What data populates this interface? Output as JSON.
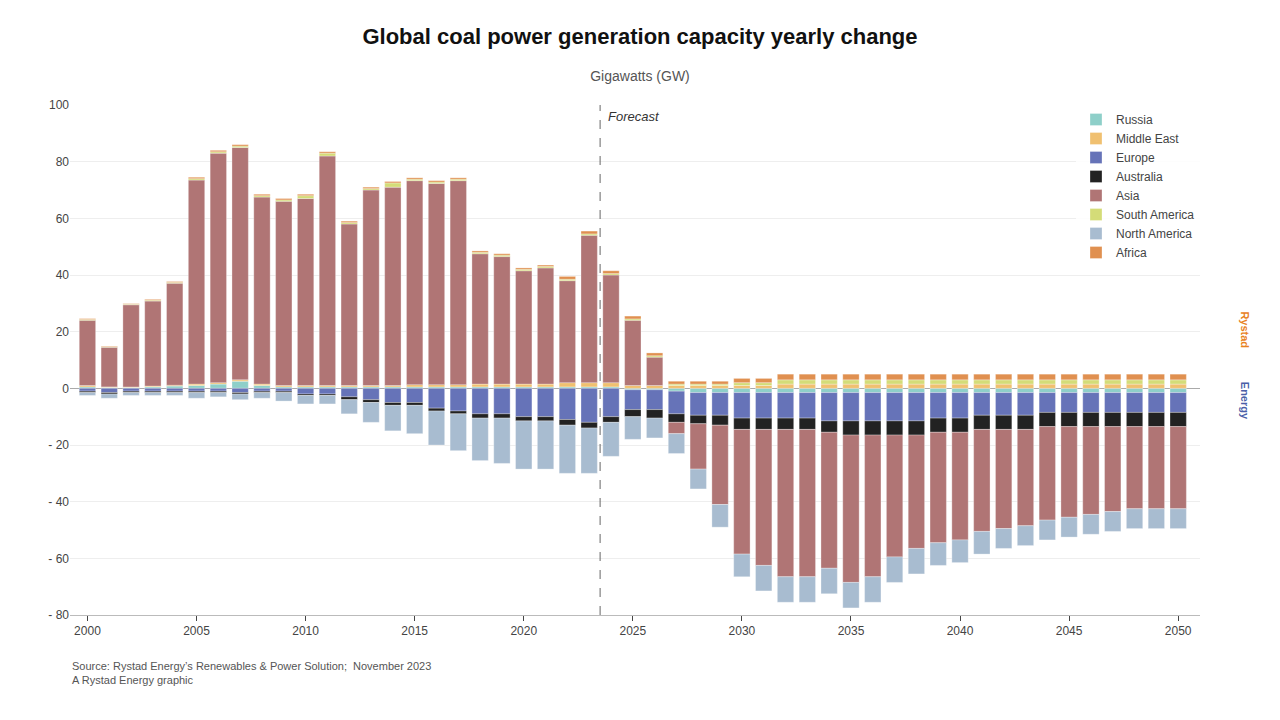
{
  "chart_data": {
    "type": "bar",
    "stacked": true,
    "title": "Global coal power generation capacity yearly change",
    "subtitle": "Gigawatts (GW)",
    "source": "Source: Rystad Energy’s Renewables & Power Solution;  November 2023\nA Rystad Energy graphic",
    "watermark": [
      {
        "text": "Rystad",
        "color": "#e8821e"
      },
      {
        "text": "Energy",
        "color": "#4a5fa8"
      }
    ],
    "annotations": [
      {
        "text": "Forecast",
        "x": 2023.5,
        "y": 96,
        "line_style": "dashed"
      }
    ],
    "x": [
      2000,
      2001,
      2002,
      2003,
      2004,
      2005,
      2006,
      2007,
      2008,
      2009,
      2010,
      2011,
      2012,
      2013,
      2014,
      2015,
      2016,
      2017,
      2018,
      2019,
      2020,
      2021,
      2022,
      2023,
      2024,
      2025,
      2026,
      2027,
      2028,
      2029,
      2030,
      2031,
      2032,
      2033,
      2034,
      2035,
      2036,
      2037,
      2038,
      2039,
      2040,
      2041,
      2042,
      2043,
      2044,
      2045,
      2046,
      2047,
      2048,
      2049,
      2050
    ],
    "xlim": [
      1999.2,
      2051.0
    ],
    "xticks": [
      2000,
      2005,
      2010,
      2015,
      2020,
      2025,
      2030,
      2035,
      2040,
      2045,
      2050
    ],
    "ylim": [
      -80,
      100
    ],
    "yticks": [
      {
        "value": -80,
        "label": "- 80"
      },
      {
        "value": -60,
        "label": "- 60"
      },
      {
        "value": -40,
        "label": "- 40"
      },
      {
        "value": -20,
        "label": "- 20"
      },
      0,
      20,
      40,
      60,
      80,
      100
    ],
    "grid": true,
    "legend": "upper right",
    "series": [
      {
        "name": "Russia",
        "color": "#8ecfc9",
        "values": [
          0.5,
          0.3,
          0.3,
          0.5,
          0.8,
          1.0,
          1.5,
          2.5,
          1.0,
          0.5,
          0.5,
          0.5,
          0.5,
          0.5,
          0.5,
          0.5,
          0.5,
          0.5,
          0.5,
          0.5,
          0.5,
          0.5,
          0.5,
          0.5,
          0.5,
          -0.5,
          -0.5,
          -1.0,
          -1.5,
          -1.5,
          -1.5,
          -1.5,
          -1.5,
          -1.5,
          -1.5,
          -1.5,
          -1.5,
          -1.5,
          -1.5,
          -1.5,
          -1.5,
          -1.5,
          -1.5,
          -1.5,
          -1.5,
          -1.5,
          -1.5,
          -1.5,
          -1.5,
          -1.5,
          -1.5
        ]
      },
      {
        "name": "Middle East",
        "color": "#f0c070",
        "values": [
          0.5,
          0.2,
          0.2,
          0.3,
          0.3,
          0.5,
          0.5,
          0.5,
          0.5,
          0.5,
          0.5,
          0.5,
          0.5,
          0.5,
          0.5,
          0.8,
          0.8,
          0.8,
          1.0,
          1.0,
          1.0,
          1.0,
          1.5,
          1.5,
          1.5,
          1.0,
          1.0,
          1.0,
          1.0,
          1.0,
          1.0,
          1.0,
          1.5,
          1.5,
          1.5,
          1.5,
          1.5,
          1.5,
          1.5,
          1.5,
          1.5,
          1.5,
          1.5,
          1.5,
          1.5,
          1.5,
          1.5,
          1.5,
          1.5,
          1.5,
          1.5
        ]
      },
      {
        "name": "Europe",
        "color": "#6673b8",
        "values": [
          -1.0,
          -1.5,
          -1.0,
          -1.0,
          -1.0,
          -1.0,
          -1.0,
          -1.5,
          -1.0,
          -1.0,
          -2.0,
          -2.0,
          -3.0,
          -4.0,
          -5.0,
          -5.0,
          -7.0,
          -8.0,
          -9.0,
          -9.0,
          -10.0,
          -10.0,
          -11.0,
          -12.0,
          -10.0,
          -7.0,
          -7.0,
          -8.0,
          -8.0,
          -8.0,
          -9.0,
          -9.0,
          -9.0,
          -9.0,
          -10.0,
          -10.0,
          -10.0,
          -10.0,
          -10.0,
          -9.0,
          -9.0,
          -8.0,
          -8.0,
          -8.0,
          -7.0,
          -7.0,
          -7.0,
          -7.0,
          -7.0,
          -7.0,
          -7.0
        ]
      },
      {
        "name": "Australia",
        "color": "#222222",
        "values": [
          -0.5,
          -0.5,
          -0.5,
          -0.5,
          -0.5,
          -0.5,
          -0.5,
          -0.5,
          -0.5,
          -0.5,
          -0.5,
          -0.5,
          -1.0,
          -1.0,
          -1.0,
          -1.0,
          -1.0,
          -1.0,
          -1.5,
          -1.5,
          -1.5,
          -1.5,
          -2.0,
          -2.0,
          -2.0,
          -2.5,
          -3.0,
          -3.0,
          -3.0,
          -3.5,
          -4.0,
          -4.0,
          -4.0,
          -4.0,
          -4.0,
          -5.0,
          -5.0,
          -5.0,
          -5.0,
          -5.0,
          -5.0,
          -5.0,
          -5.0,
          -5.0,
          -5.0,
          -5.0,
          -5.0,
          -5.0,
          -5.0,
          -5.0,
          -5.0
        ]
      },
      {
        "name": "Asia",
        "color": "#b07575",
        "values": [
          23.0,
          14.0,
          29.0,
          30.0,
          36.0,
          72.0,
          81.0,
          82.0,
          66.0,
          65.0,
          66.0,
          81.0,
          57.0,
          69.0,
          70.0,
          72.0,
          71.0,
          72.0,
          46.0,
          45.0,
          40.0,
          41.0,
          36.0,
          52.0,
          38.0,
          23.0,
          10.0,
          -4.0,
          -16.0,
          -28.0,
          -44.0,
          -48.0,
          -52.0,
          -52.0,
          -48.0,
          -52.0,
          -50.0,
          -43.0,
          -40.0,
          -39.0,
          -38.0,
          -36.0,
          -35.0,
          -34.0,
          -33.0,
          -32.0,
          -31.0,
          -30.0,
          -29.0,
          -29.0,
          -29.0
        ]
      },
      {
        "name": "South America",
        "color": "#d4dc78",
        "values": [
          0.3,
          0.2,
          0.2,
          0.3,
          0.3,
          0.5,
          0.5,
          0.5,
          0.5,
          0.5,
          1.0,
          1.0,
          0.5,
          0.5,
          1.5,
          0.5,
          0.5,
          0.5,
          0.5,
          0.5,
          0.5,
          0.5,
          0.5,
          0.5,
          0.5,
          0.5,
          0.5,
          0.5,
          0.5,
          0.5,
          1.0,
          1.0,
          1.5,
          1.5,
          1.5,
          1.5,
          1.5,
          1.5,
          1.5,
          1.5,
          1.5,
          1.5,
          1.5,
          1.5,
          1.5,
          1.5,
          1.5,
          1.5,
          1.5,
          1.5,
          1.5
        ]
      },
      {
        "name": "North America",
        "color": "#a8bcd0",
        "values": [
          -1.0,
          -1.5,
          -1.0,
          -1.0,
          -1.0,
          -2.0,
          -1.5,
          -2.0,
          -2.0,
          -3.0,
          -3.0,
          -3.0,
          -5.0,
          -7.0,
          -9.0,
          -10.0,
          -12.0,
          -13.0,
          -15.0,
          -16.0,
          -17.0,
          -17.0,
          -17.0,
          -16.0,
          -12.0,
          -8.0,
          -7.0,
          -7.0,
          -7.0,
          -8.0,
          -8.0,
          -9.0,
          -9.0,
          -9.0,
          -9.0,
          -9.0,
          -9.0,
          -9.0,
          -9.0,
          -8.0,
          -8.0,
          -8.0,
          -7.0,
          -7.0,
          -7.0,
          -7.0,
          -7.0,
          -7.0,
          -7.0,
          -7.0,
          -7.0
        ]
      },
      {
        "name": "Africa",
        "color": "#e09050",
        "values": [
          0.3,
          0.2,
          0.2,
          0.3,
          0.3,
          0.5,
          0.5,
          0.5,
          0.5,
          0.5,
          0.5,
          0.5,
          0.5,
          0.5,
          0.5,
          0.5,
          0.5,
          0.5,
          0.5,
          0.5,
          0.5,
          0.5,
          1.0,
          1.0,
          1.0,
          1.0,
          1.0,
          1.0,
          1.0,
          1.0,
          1.5,
          1.5,
          2.0,
          2.0,
          2.0,
          2.0,
          2.0,
          2.0,
          2.0,
          2.0,
          2.0,
          2.0,
          2.0,
          2.0,
          2.0,
          2.0,
          2.0,
          2.0,
          2.0,
          2.0,
          2.0
        ]
      }
    ]
  }
}
